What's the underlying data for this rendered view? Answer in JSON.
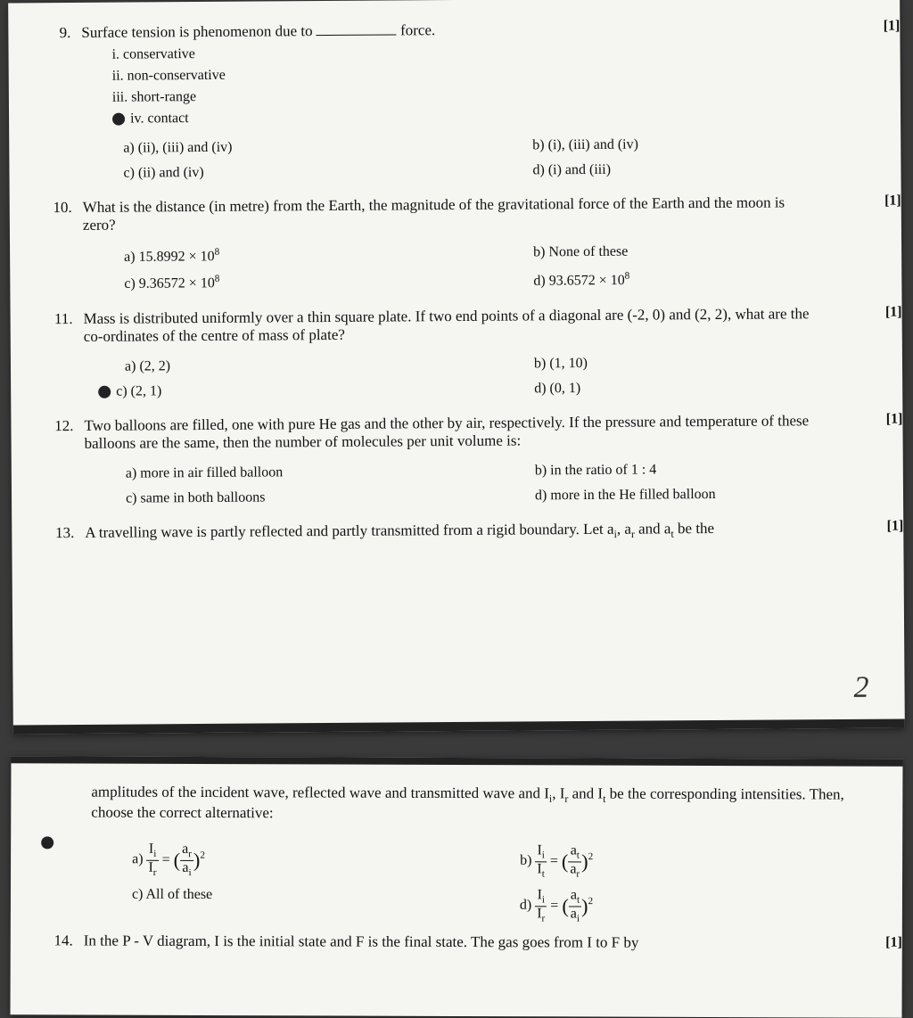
{
  "background_color": "#3a3a3a",
  "paper_color": "#f5f5f2",
  "text_color": "#111111",
  "q9": {
    "num": "9.",
    "text_a": "Surface tension is phenomenon due to ",
    "text_b": " force.",
    "marks": "[1]",
    "roman": {
      "i": "i. conservative",
      "ii": "ii. non-conservative",
      "iii": "iii. short-range",
      "iv": "iv. contact"
    },
    "opts": {
      "a": "a) (ii), (iii) and (iv)",
      "b": "b) (i), (iii) and (iv)",
      "c": "c) (ii) and (iv)",
      "d": "d) (i) and (iii)"
    }
  },
  "q10": {
    "num": "10.",
    "text": "What is the distance (in metre) from the Earth, the magnitude of the gravitational force of the Earth and the moon is zero?",
    "marks": "[1]",
    "opts": {
      "a_pre": "a) 15.8992 × 10",
      "a_sup": "8",
      "b": "b) None of these",
      "c_pre": "c) 9.36572 × 10",
      "c_sup": "8",
      "d_pre": "d) 93.6572 × 10",
      "d_sup": "8"
    }
  },
  "q11": {
    "num": "11.",
    "text": "Mass is distributed uniformly over a thin square plate. If two end points of a diagonal are (-2, 0) and (2, 2), what are the co-ordinates of the centre of mass of plate?",
    "marks": "[1]",
    "opts": {
      "a": "a) (2, 2)",
      "b": "b) (1, 10)",
      "c": "c) (2, 1)",
      "d": "d) (0, 1)"
    }
  },
  "q12": {
    "num": "12.",
    "text": "Two balloons are filled, one with pure He gas and the other by air, respectively. If the pressure and temperature of these balloons are the same, then the number of molecules per unit volume is:",
    "marks": "[1]",
    "opts": {
      "a": "a) more in air filled balloon",
      "b": "b) in the ratio of 1 : 4",
      "c": "c) same in both balloons",
      "d": "d) more in the He filled balloon"
    }
  },
  "q13": {
    "num": "13.",
    "text_a": "A travelling wave is partly reflected and partly transmitted from a rigid boundary. Let a",
    "sub_i": "i",
    "sep1": ", a",
    "sub_r": "r",
    "sep2": " and a",
    "sub_t": "t",
    "text_b": " be the",
    "marks": "[1]"
  },
  "pagehand": "2",
  "q13b": {
    "text_a": "amplitudes of the incident wave, reflected wave and transmitted wave and I",
    "sub_i": "i",
    "sep1": ", I",
    "sub_r": "r",
    "sep2": " and I",
    "sub_t": "t",
    "text_b": " be the corresponding intensities. Then, choose the correct alternative:",
    "opts": {
      "a_pre": "a) ",
      "b_pre": "b) ",
      "c": "c) All of these",
      "d_pre": "d) "
    },
    "frac": {
      "a": {
        "num_l": "I",
        "num_ls": "i",
        "den_l": "I",
        "den_ls": "r",
        "rn_l": "a",
        "rn_ls": "r",
        "rd_l": "a",
        "rd_ls": "i",
        "exp": "2"
      },
      "b": {
        "num_l": "I",
        "num_ls": "i",
        "den_l": "I",
        "den_ls": "t",
        "rn_l": "a",
        "rn_ls": "t",
        "rd_l": "a",
        "rd_ls": "r",
        "exp": "2"
      },
      "d": {
        "num_l": "I",
        "num_ls": "i",
        "den_l": "I",
        "den_ls": "r",
        "rn_l": "a",
        "rn_ls": "t",
        "rd_l": "a",
        "rd_ls": "i",
        "exp": "2"
      }
    }
  },
  "q14": {
    "num": "14.",
    "text": "In the P - V diagram, I is the initial state and F is the final state. The gas goes from I to F by",
    "marks": "[1]"
  }
}
